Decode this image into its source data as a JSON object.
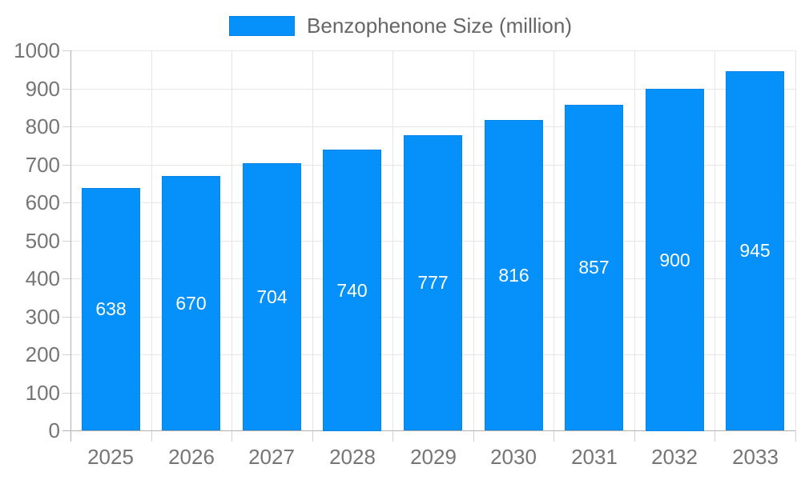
{
  "chart_data": {
    "type": "bar",
    "categories": [
      "2025",
      "2026",
      "2027",
      "2028",
      "2029",
      "2030",
      "2031",
      "2032",
      "2033"
    ],
    "series": [
      {
        "name": "Benzophenone Size (million)",
        "values": [
          638,
          670,
          704,
          740,
          777,
          816,
          857,
          900,
          945
        ]
      }
    ],
    "ylim": [
      0,
      1000
    ],
    "yticks": [
      0,
      100,
      200,
      300,
      400,
      500,
      600,
      700,
      800,
      900,
      1000
    ],
    "grid": true,
    "legend_position": "top-center",
    "bar_value_labels": true,
    "colors": {
      "bar": "#0590fa",
      "bar_border": "#0b84e4",
      "grid": "#e6e6e6",
      "axis": "#b0b0b0",
      "tick": "#d2d2d2",
      "axis_label": "#757575",
      "legend_text": "#666666",
      "value_label": "#ffffff",
      "background": "#ffffff"
    }
  }
}
